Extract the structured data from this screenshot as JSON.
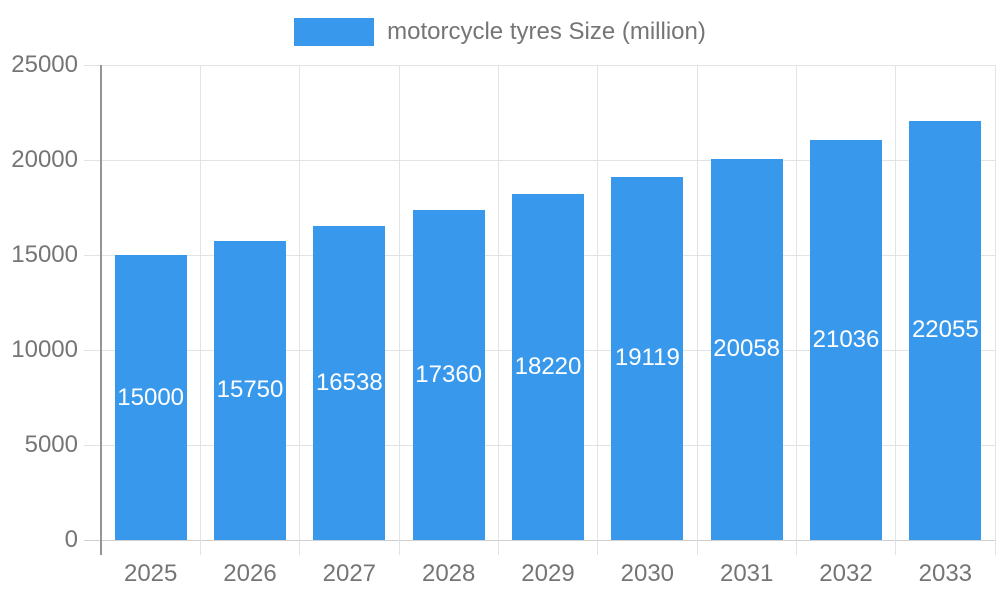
{
  "chart_data": {
    "type": "bar",
    "title": "",
    "legend": "motorcycle tyres Size (million)",
    "legend_position": "top",
    "categories": [
      "2025",
      "2026",
      "2027",
      "2028",
      "2029",
      "2030",
      "2031",
      "2032",
      "2033"
    ],
    "values": [
      15000,
      15750,
      16538,
      17360,
      18220,
      19119,
      20058,
      21036,
      22055
    ],
    "xlabel": "",
    "ylabel": "",
    "ylim": [
      0,
      25000
    ],
    "yticks": [
      0,
      5000,
      10000,
      15000,
      20000,
      25000
    ],
    "grid": true,
    "colors": {
      "bar": "#3899EC",
      "bar_label_text": "#FFFFFF",
      "axis_line": "#949494",
      "gridline": "#E3E3E3",
      "zero_line": "#CFCFCF",
      "tick_text": "#757575",
      "legend_text": "#757575",
      "background": "#FFFFFF"
    }
  }
}
